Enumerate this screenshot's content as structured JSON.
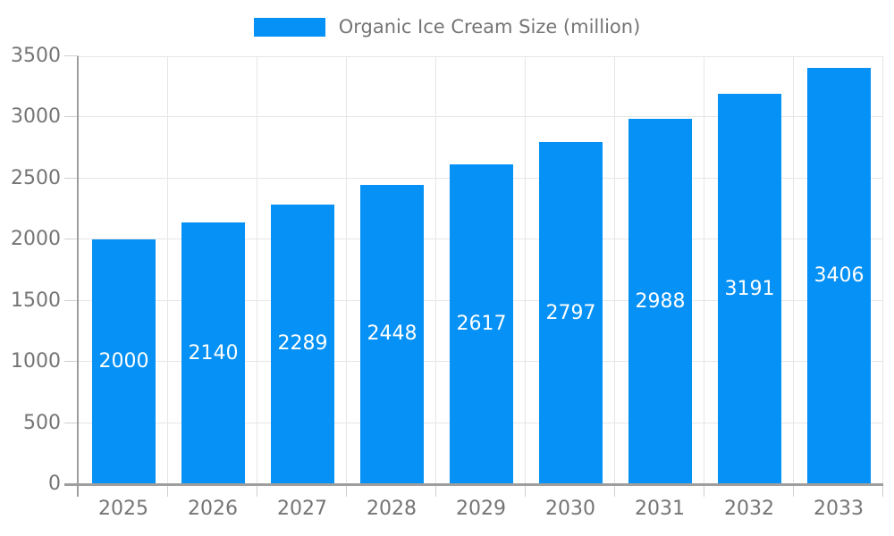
{
  "chart_data": {
    "type": "bar",
    "title": "Organic Ice Cream Size (million)",
    "categories": [
      "2025",
      "2026",
      "2027",
      "2028",
      "2029",
      "2030",
      "2031",
      "2032",
      "2033"
    ],
    "series": [
      {
        "name": "Organic Ice Cream Size (million)",
        "values": [
          2000,
          2140,
          2289,
          2448,
          2617,
          2797,
          2988,
          3191,
          3406
        ]
      }
    ],
    "xlabel": "",
    "ylabel": "",
    "ylim": [
      0,
      3500
    ],
    "yticks": [
      0,
      500,
      1000,
      1500,
      2000,
      2500,
      3000,
      3500
    ],
    "grid": true,
    "legend_position": "top",
    "value_labels_position": "inside-center",
    "colors": {
      "bar": "#0591F5",
      "axis_line": "#9e9e9e",
      "gridline": "#e6e6e6",
      "tick": "#cfcfcf",
      "label_text": "#757575",
      "value_label_text": "#ffffff",
      "background": "#ffffff"
    }
  }
}
